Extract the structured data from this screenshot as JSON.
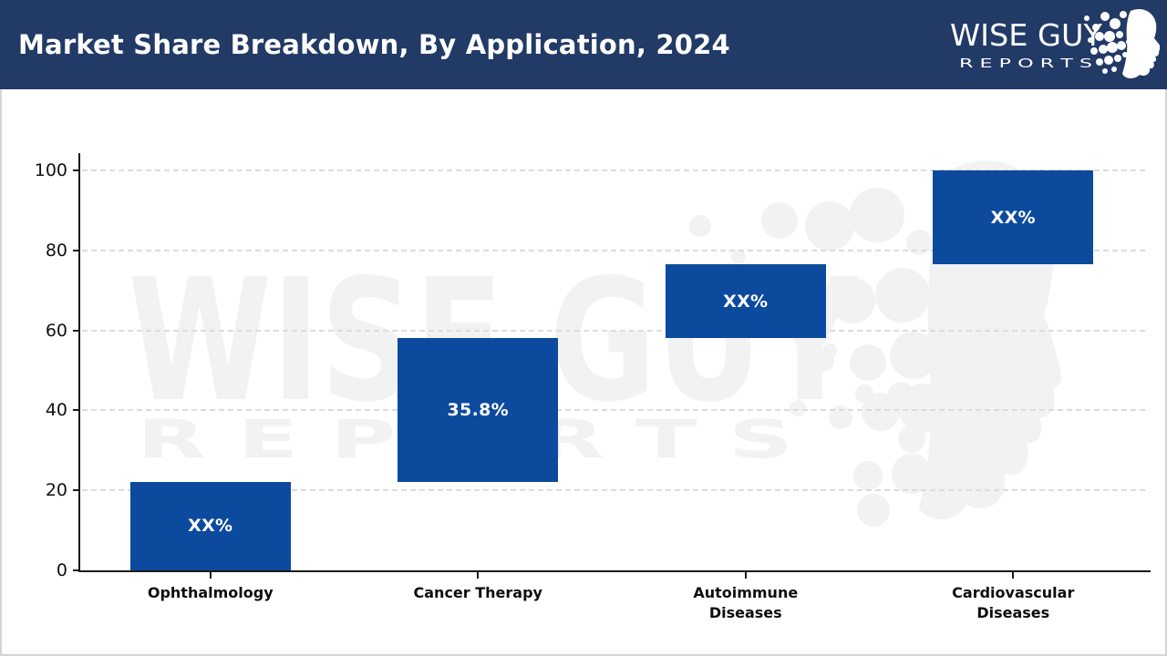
{
  "header": {
    "title": "Market Share Breakdown, By Application, 2024",
    "logo": {
      "primary": "WISE GUY",
      "secondary": "R E P O R T S"
    }
  },
  "watermark": {
    "primary": "WISE GUY",
    "secondary": "R E P O R T S"
  },
  "chart_data": {
    "type": "bar",
    "subtype": "waterfall",
    "title": "Market Share Breakdown, By Application, 2024",
    "categories": [
      "Ophthalmology",
      "Cancer Therapy",
      "Autoimmune\nDiseases",
      "Cardiovascular\nDiseases"
    ],
    "segments": [
      {
        "category": "Ophthalmology",
        "start": 0,
        "end": 22.2,
        "value": 22.2,
        "label": "XX%"
      },
      {
        "category": "Cancer Therapy",
        "start": 22.2,
        "end": 58.0,
        "value": 35.8,
        "label": "35.8%"
      },
      {
        "category": "Autoimmune Diseases",
        "start": 58.0,
        "end": 76.5,
        "value": 18.5,
        "label": "XX%"
      },
      {
        "category": "Cardiovascular Diseases",
        "start": 76.5,
        "end": 100,
        "value": 23.5,
        "label": "XX%"
      }
    ],
    "yticks": [
      0,
      20,
      40,
      60,
      80,
      100
    ],
    "ylim": [
      0,
      100
    ],
    "xlabel": "",
    "ylabel": "",
    "grid": "horizontal-dashed",
    "legend": "none",
    "bar_color": "#0c4a9e",
    "bar_label_color": "#ffffff"
  },
  "colors": {
    "header_bg": "#213a66",
    "bar": "#0c4a9e",
    "grid": "#dcdcdc",
    "axis": "#1a1a1a",
    "watermark": "#f2f2f2",
    "border": "#d5d5d5"
  }
}
